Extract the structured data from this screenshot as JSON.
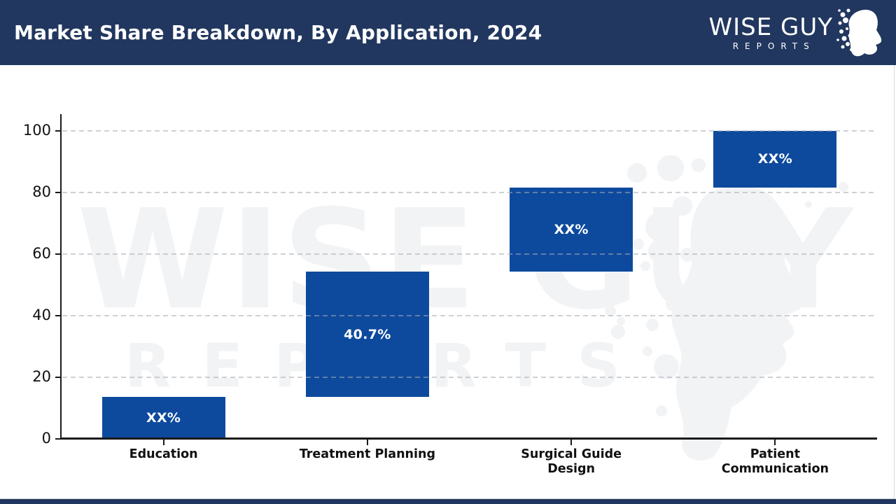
{
  "header": {
    "title": "Market Share Breakdown, By Application, 2024",
    "logo": {
      "line1": "WISE GUY",
      "line2": "REPORTS"
    }
  },
  "watermark": {
    "line1": "WISE GUY",
    "line2": "REPORTS"
  },
  "colors": {
    "header_bg": "#21375F",
    "bar": "#0D4A9E",
    "axis": "#1a1a1a",
    "watermark": "#f2f3f5"
  },
  "chart_data": {
    "type": "bar",
    "subtype": "waterfall",
    "title": "Market Share Breakdown, By Application, 2024",
    "categories": [
      "Education",
      "Treatment Planning",
      "Surgical Guide Design",
      "Patient Communication"
    ],
    "segments": [
      {
        "category": "Education",
        "category_lines": [
          "Education"
        ],
        "start": 0,
        "end": 13.6,
        "value": 13.6,
        "label": "XX%"
      },
      {
        "category": "Treatment Planning",
        "category_lines": [
          "Treatment Planning"
        ],
        "start": 13.6,
        "end": 54.3,
        "value": 40.7,
        "label": "40.7%"
      },
      {
        "category": "Surgical Guide Design",
        "category_lines": [
          "Surgical Guide",
          "Design"
        ],
        "start": 54.3,
        "end": 81.6,
        "value": 27.3,
        "label": "XX%"
      },
      {
        "category": "Patient Communication",
        "category_lines": [
          "Patient",
          "Communication"
        ],
        "start": 81.6,
        "end": 100,
        "value": 18.4,
        "label": "XX%"
      }
    ],
    "yticks": [
      0,
      20,
      40,
      60,
      80,
      100
    ],
    "ylim": [
      0,
      105.5
    ],
    "xlabel": "",
    "ylabel": "",
    "grid": "horizontal-dashed",
    "legend": false,
    "bar_color": "#0D4A9E",
    "value_label_color": "#ffffff"
  }
}
